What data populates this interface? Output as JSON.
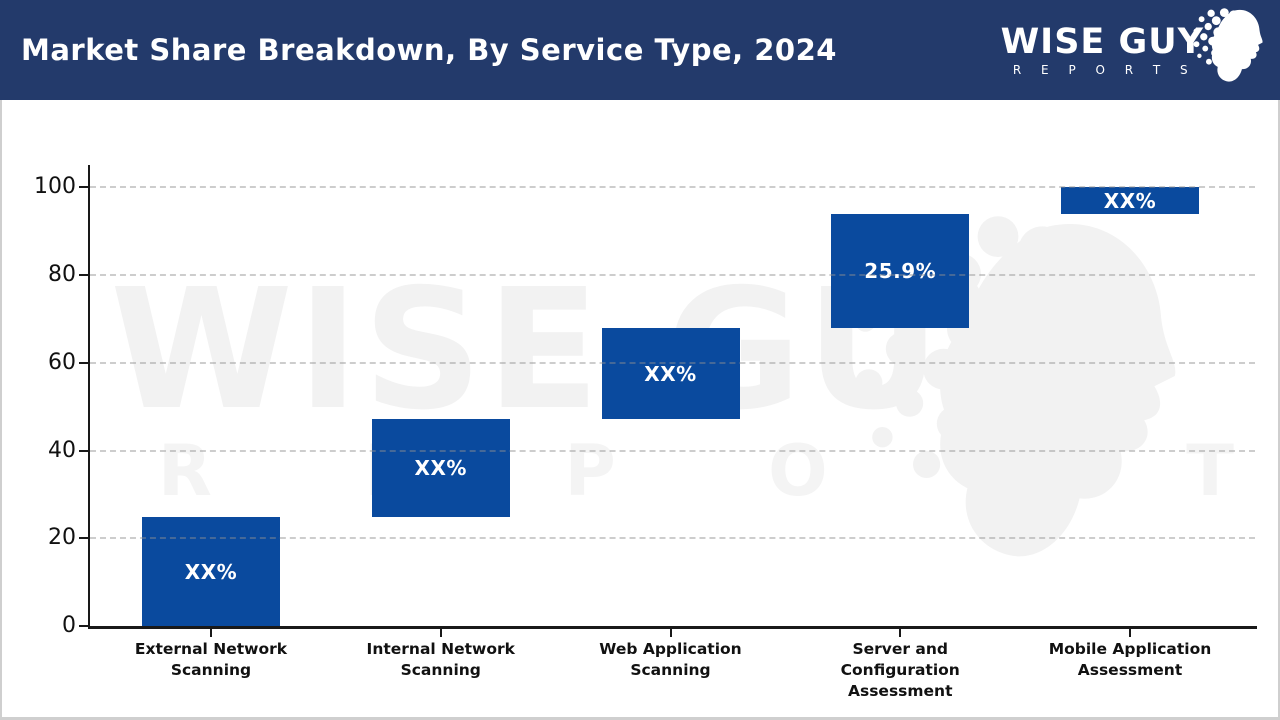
{
  "header": {
    "title": "Market Share Breakdown, By Service Type, 2024",
    "logo": {
      "line1": "WISE GUY",
      "line2": "R E P O R T S"
    }
  },
  "watermark": {
    "text1": "WISE GUY",
    "text2": "R E P O R T S"
  },
  "colors": {
    "header_bg": "#233a6b",
    "bar": "#0a4a9e",
    "axis": "#191919",
    "grid": "#c9c9c9",
    "watermark": "#f2f2f2",
    "value_label": "#ffffff"
  },
  "chart_data": {
    "type": "bar",
    "subtype": "waterfall (floating bars)",
    "title": "Market Share Breakdown, By Service Type, 2024",
    "categories": [
      "External Network Scanning",
      "Internal Network Scanning",
      "Web Application Scanning",
      "Server and Configuration Assessment",
      "Mobile Application Assessment"
    ],
    "category_label_lines": [
      [
        "External Network",
        "Scanning"
      ],
      [
        "Internal Network",
        "Scanning"
      ],
      [
        "Web Application",
        "Scanning"
      ],
      [
        "Server and",
        "Configuration",
        "Assessment"
      ],
      [
        "Mobile Application",
        "Assessment"
      ]
    ],
    "bars": [
      {
        "start": 0,
        "end": 24.8,
        "label": "XX%"
      },
      {
        "start": 24.8,
        "end": 47.2,
        "label": "XX%"
      },
      {
        "start": 47.2,
        "end": 67.9,
        "label": "XX%"
      },
      {
        "start": 67.9,
        "end": 93.8,
        "label": "25.9%"
      },
      {
        "start": 93.8,
        "end": 100,
        "label": "XX%"
      }
    ],
    "xlabel": "",
    "ylabel": "",
    "ylim": [
      0,
      105
    ],
    "yticks": [
      0,
      20,
      40,
      60,
      80,
      100
    ],
    "grid": "horizontal dashed, drawn faintly over bars",
    "legend": "none",
    "bar_color": "#0a4a9e",
    "value_label_color": "#ffffff"
  }
}
